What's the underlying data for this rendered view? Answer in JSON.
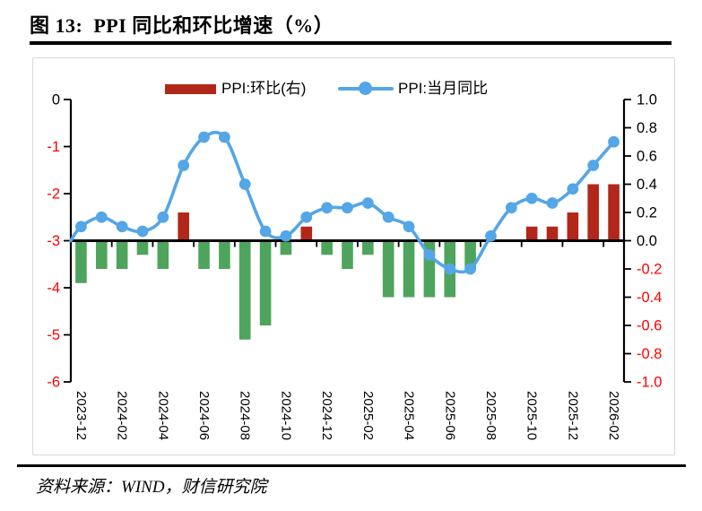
{
  "page": {
    "title": "图 13:  PPI 同比和环比增速（%）",
    "source": "资料来源：WIND，财信研究院"
  },
  "legend": {
    "bar_label": "PPI:环比(右)",
    "line_label": "PPI:当月同比"
  },
  "colors": {
    "bar_positive": "#b2271a",
    "bar_negative": "#4ea45c",
    "line": "#54a6e6",
    "axis": "#000000",
    "negative_tick_label": "#ff0000",
    "positive_tick_label": "#000000",
    "frame_border": "#d9d9d9"
  },
  "chart_data": {
    "type": "combo-bar-line",
    "title": "图 13:  PPI 同比和环比增速（%）",
    "categories": [
      "2023-12",
      "2024-01",
      "2024-02",
      "2024-03",
      "2024-04",
      "2024-05",
      "2024-06",
      "2024-07",
      "2024-08",
      "2024-09",
      "2024-10",
      "2024-11",
      "2024-12",
      "2025-01",
      "2025-02",
      "2025-03",
      "2025-04",
      "2025-05",
      "2025-06",
      "2025-07",
      "2025-08",
      "2025-09",
      "2025-10",
      "2025-11",
      "2025-12",
      "2026-01",
      "2026-02"
    ],
    "x_tick_every": 2,
    "x_tick_labels": [
      "2023-12",
      "2024-02",
      "2024-04",
      "2024-06",
      "2024-08",
      "2024-10",
      "2024-12",
      "2025-02",
      "2025-04",
      "2025-06",
      "2025-08",
      "2025-10",
      "2025-12",
      "2026-02"
    ],
    "series": [
      {
        "name": "PPI:环比(右)",
        "type": "bar",
        "axis": "right",
        "values": [
          -0.3,
          -0.2,
          -0.2,
          -0.1,
          -0.2,
          0.2,
          -0.2,
          -0.2,
          -0.7,
          -0.6,
          -0.1,
          0.1,
          -0.1,
          -0.2,
          -0.1,
          -0.4,
          -0.4,
          -0.4,
          -0.4,
          -0.2,
          0.0,
          0.0,
          0.1,
          0.1,
          0.2,
          0.4,
          0.4
        ]
      },
      {
        "name": "PPI:当月同比",
        "type": "line",
        "axis": "left",
        "smooth": true,
        "lead_in_value": -3.0,
        "values": [
          -2.7,
          -2.5,
          -2.7,
          -2.8,
          -2.5,
          -1.4,
          -0.8,
          -0.8,
          -1.8,
          -2.8,
          -2.9,
          -2.5,
          -2.3,
          -2.3,
          -2.2,
          -2.5,
          -2.7,
          -3.3,
          -3.6,
          -3.6,
          -2.9,
          -2.3,
          -2.1,
          -2.2,
          -1.9,
          -1.4,
          -0.9
        ]
      }
    ],
    "left_axis": {
      "range": [
        0,
        -6
      ],
      "tick_labels": [
        "0",
        "-1",
        "-2",
        "-3",
        "-4",
        "-5",
        "-6"
      ]
    },
    "right_axis": {
      "range": [
        1.0,
        -1.0
      ],
      "tick_labels": [
        "1.0",
        "0.8",
        "0.6",
        "0.4",
        "0.2",
        "0.0",
        "-0.2",
        "-0.4",
        "-0.6",
        "-0.8",
        "-1.0"
      ]
    },
    "bar_zero_at_left_value": -3,
    "grid": false,
    "legend_position": "top"
  }
}
